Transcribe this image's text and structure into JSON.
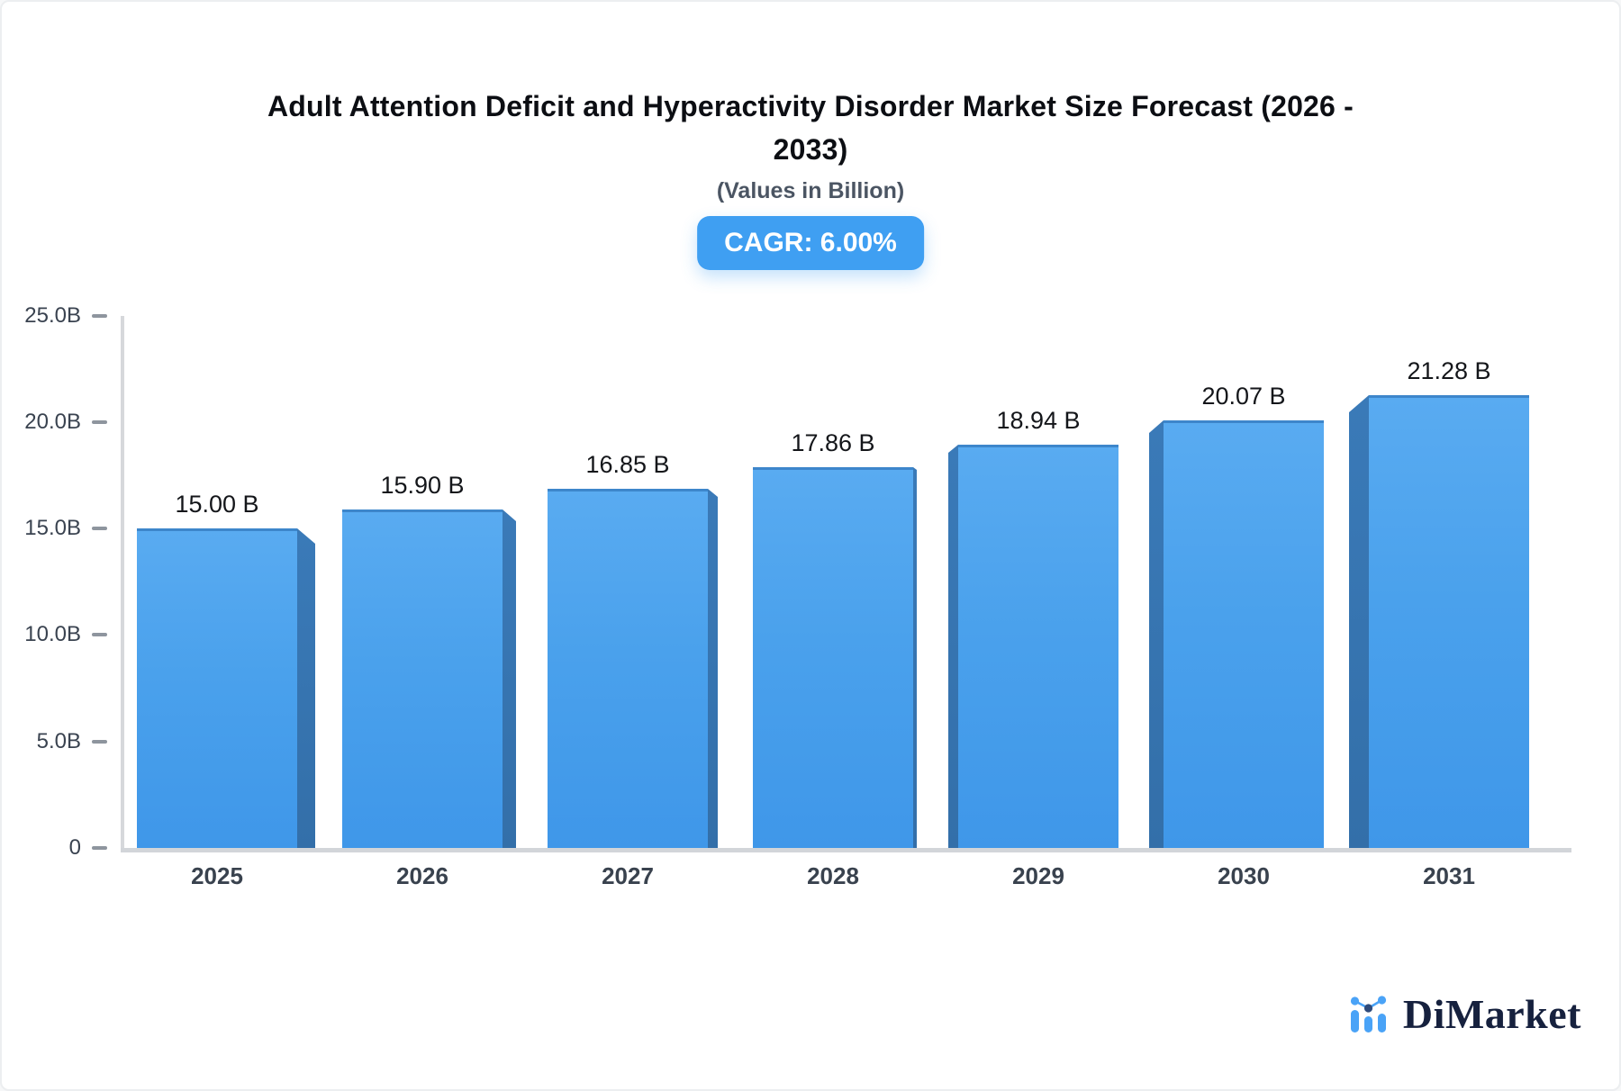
{
  "header": {
    "title_line1": "Adult Attention Deficit and Hyperactivity Disorder Market Size Forecast (2026 -",
    "title_line2": "2033)",
    "subtitle": "(Values in Billion)",
    "cagr_label": "CAGR: 6.00%"
  },
  "chart_data": {
    "type": "bar",
    "title": "Adult Attention Deficit and Hyperactivity Disorder Market Size Forecast (2026 - 2033)",
    "subtitle": "(Values in Billion)",
    "unit": "Billion",
    "cagr_percent": 6.0,
    "categories": [
      "2025",
      "2026",
      "2027",
      "2028",
      "2029",
      "2030",
      "2031"
    ],
    "values": [
      15.0,
      15.9,
      16.85,
      17.86,
      18.94,
      20.07,
      21.28
    ],
    "value_labels": [
      "15.00 B",
      "15.90 B",
      "16.85 B",
      "17.86 B",
      "18.94 B",
      "20.07 B",
      "21.28 B"
    ],
    "yticks": [
      {
        "value": 25,
        "label": "25.0B"
      },
      {
        "value": 20,
        "label": "20.0B"
      },
      {
        "value": 15,
        "label": "15.0B"
      },
      {
        "value": 10,
        "label": "10.0B"
      },
      {
        "value": 5,
        "label": "5.0B"
      },
      {
        "value": 0,
        "label": "0"
      }
    ],
    "ylim": [
      0,
      25
    ],
    "xlabel": "",
    "ylabel": "",
    "grid": false,
    "legend": false,
    "style": "3d-columns"
  },
  "colors": {
    "bar_face": "#4aa1ec",
    "bar_side": "#3a7ab8",
    "badge_bg": "#3f9ff2",
    "axis_line": "#d6d8db",
    "logo_navy": "#16213e",
    "logo_blue": "#4aa3f7"
  },
  "branding": {
    "logo_text": "DiMarket",
    "logo_icon": "bar-chart-with-dots-icon"
  }
}
